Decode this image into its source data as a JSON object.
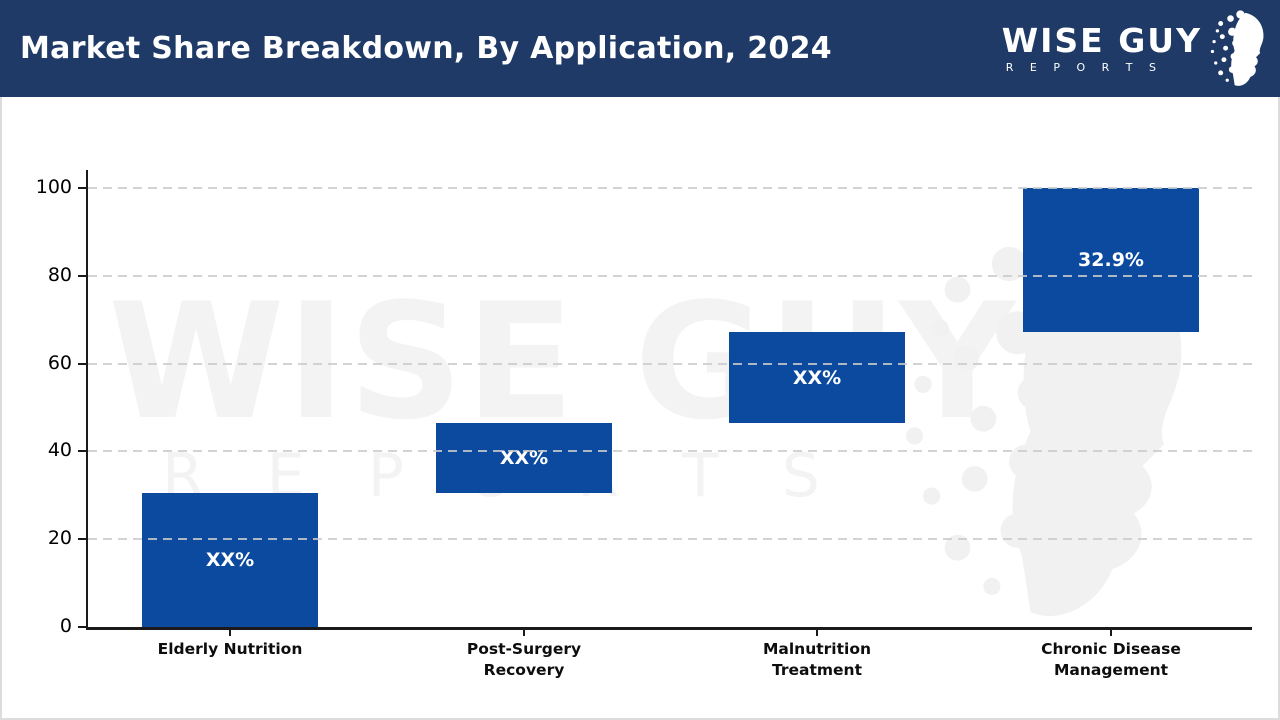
{
  "header": {
    "title": "Market Share Breakdown, By Application, 2024",
    "bg_color": "#1f3a66",
    "logo_line1": "WISE GUY",
    "logo_line2": "R E P O R T S"
  },
  "watermark": {
    "line1": "WISE GUY",
    "line2": "R E P O R T S"
  },
  "chart_data": {
    "type": "bar",
    "subtype": "waterfall",
    "title": "Market Share Breakdown, By Application, 2024",
    "categories": [
      "Elderly Nutrition",
      "Post-Surgery Recovery",
      "Malnutrition Treatment",
      "Chronic Disease Management"
    ],
    "category_lines": [
      [
        "Elderly Nutrition"
      ],
      [
        "Post-Surgery",
        "Recovery"
      ],
      [
        "Malnutrition",
        "Treatment"
      ],
      [
        "Chronic Disease",
        "Management"
      ]
    ],
    "segments": [
      {
        "category": "Elderly Nutrition",
        "start": 0,
        "end": 30.5,
        "value": 30.5,
        "label": "XX%"
      },
      {
        "category": "Post-Surgery Recovery",
        "start": 30.5,
        "end": 46.4,
        "value": 15.9,
        "label": "XX%"
      },
      {
        "category": "Malnutrition Treatment",
        "start": 46.4,
        "end": 67.1,
        "value": 20.7,
        "label": "XX%"
      },
      {
        "category": "Chronic Disease Management",
        "start": 67.1,
        "end": 100,
        "value": 32.9,
        "label": "32.9%"
      }
    ],
    "bar_color": "#0b4a9f",
    "bar_label_color": "#ffffff",
    "xlabel": "",
    "ylabel": "",
    "ylim": [
      0,
      100
    ],
    "yticks": [
      "0",
      "20",
      "40",
      "60",
      "80",
      "100"
    ],
    "grid": "horizontal-dashed",
    "gridline_color": "#d2d2d2",
    "legend": "none"
  }
}
